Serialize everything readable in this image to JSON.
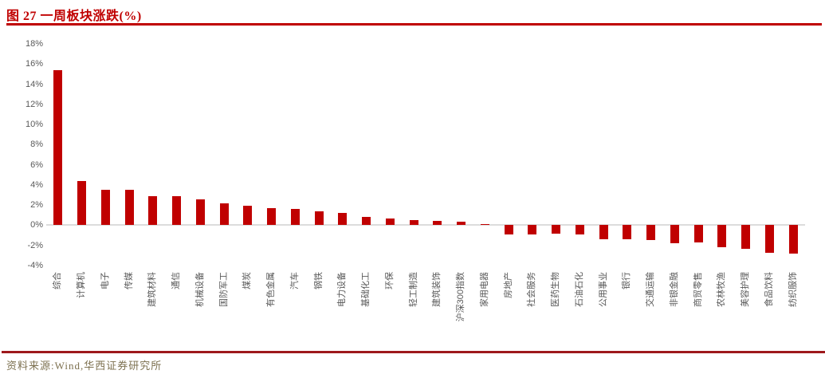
{
  "header": {
    "title": "图 27 一周板块涨跌(%)"
  },
  "chart_data": {
    "type": "bar",
    "title": "图 27 一周板块涨跌(%)",
    "xlabel": "",
    "ylabel": "",
    "ylim": [
      -4,
      18
    ],
    "ytick_step": 2,
    "ytick_suffix": "%",
    "grid": false,
    "legend": "none",
    "bar_color": "#c00000",
    "categories": [
      "综合",
      "计算机",
      "电子",
      "传媒",
      "建筑材料",
      "通信",
      "机械设备",
      "国防军工",
      "煤炭",
      "有色金属",
      "汽车",
      "钢铁",
      "电力设备",
      "基础化工",
      "环保",
      "轻工制造",
      "建筑装饰",
      "沪深300指数",
      "家用电器",
      "房地产",
      "社会服务",
      "医药生物",
      "石油石化",
      "公用事业",
      "银行",
      "交通运输",
      "非银金融",
      "商贸零售",
      "农林牧渔",
      "美容护理",
      "食品饮料",
      "纺织服饰"
    ],
    "values": [
      15.4,
      4.4,
      3.5,
      3.5,
      2.9,
      2.85,
      2.6,
      2.2,
      1.9,
      1.7,
      1.6,
      1.4,
      1.2,
      0.8,
      0.65,
      0.55,
      0.4,
      0.35,
      0.15,
      -0.9,
      -0.9,
      -0.8,
      -0.95,
      -1.4,
      -1.35,
      -1.45,
      -1.8,
      -1.7,
      -2.2,
      -2.3,
      -2.7,
      -2.85
    ]
  },
  "footer": {
    "source": "资料来源:Wind,华西证券研究所"
  },
  "colors": {
    "accent_red": "#c00000",
    "bar_red": "#c00000",
    "footer_rule_red": "#9e191c",
    "axis_text_gray": "#595959",
    "axis_line_gray": "#dcdcdc",
    "source_text_brown": "#7d7150"
  }
}
